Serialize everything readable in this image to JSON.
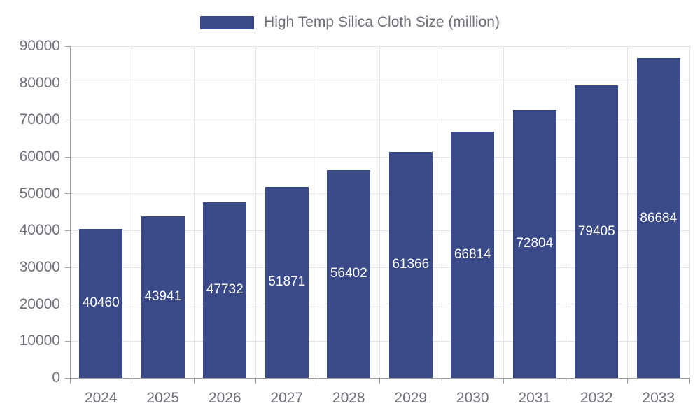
{
  "legend": {
    "label": "High Temp Silica Cloth Size (million)"
  },
  "colors": {
    "bar": "#3a4a88",
    "axis_line": "#9b9ea4",
    "grid_line": "#e3e3e9",
    "axis_text": "#6e7079",
    "legend_text": "#6e7079",
    "bar_label": "#ffffff",
    "background": "#ffffff"
  },
  "chart_data": {
    "type": "bar",
    "title": "High Temp Silica Cloth Size (million)",
    "series_name": "High Temp Silica Cloth Size (million)",
    "categories": [
      "2024",
      "2025",
      "2026",
      "2027",
      "2028",
      "2029",
      "2030",
      "2031",
      "2032",
      "2033"
    ],
    "values": [
      40460,
      43941,
      47732,
      51871,
      56402,
      61366,
      66814,
      72804,
      79405,
      86684
    ],
    "xlabel": "",
    "ylabel": "",
    "ylim": [
      0,
      90000
    ],
    "ytick_step": 10000,
    "ytick_labels": [
      "0",
      "10000",
      "20000",
      "30000",
      "40000",
      "50000",
      "60000",
      "70000",
      "80000",
      "90000"
    ],
    "grid": true,
    "legend_position": "top-center",
    "bar_label_position": "inside-center",
    "bar_label_color": "#ffffff"
  }
}
